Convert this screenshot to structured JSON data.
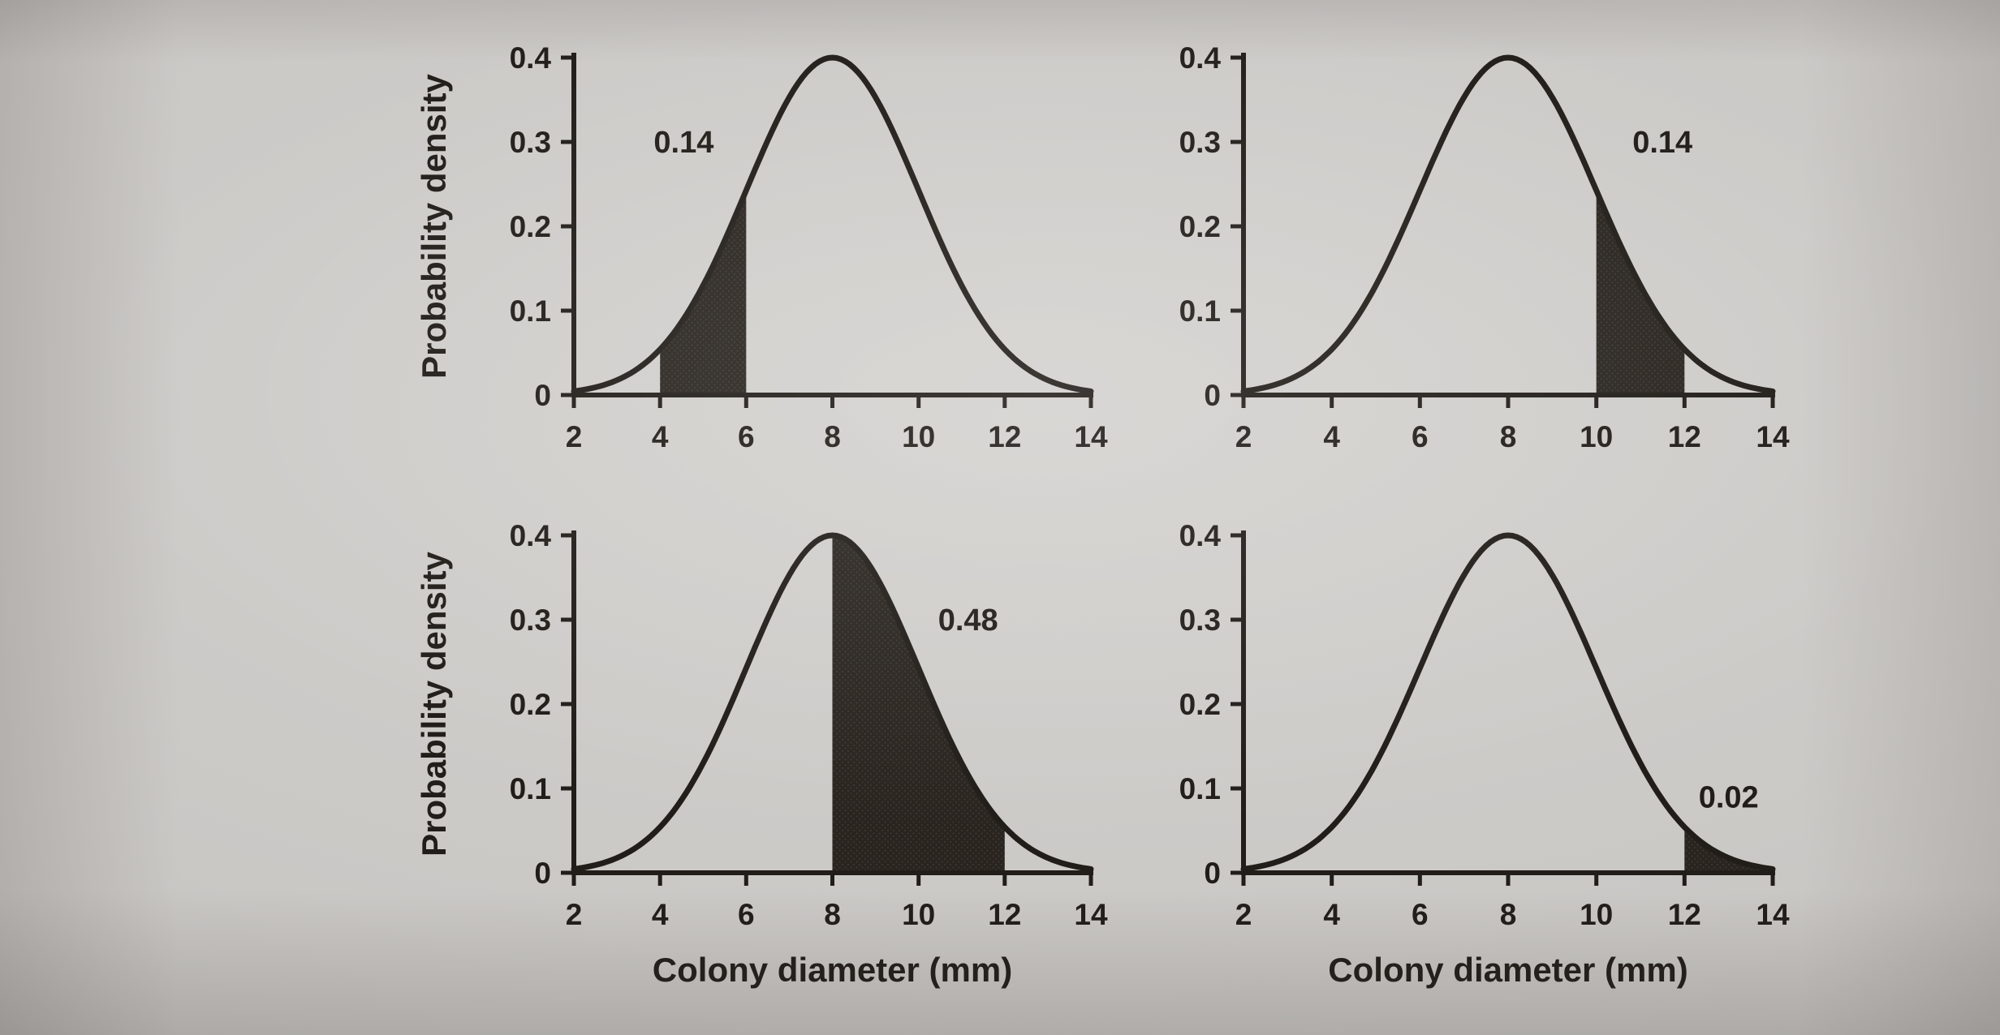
{
  "figure": {
    "x_ticks": [
      2,
      4,
      6,
      8,
      10,
      12,
      14
    ],
    "x_tick_labels": [
      "2",
      "4",
      "6",
      "8",
      "10",
      "12",
      "14"
    ],
    "y_ticks": [
      0,
      0.1,
      0.2,
      0.3,
      0.4
    ],
    "y_tick_labels": [
      "0",
      "0.1",
      "0.2",
      "0.3",
      "0.4"
    ],
    "xlabel": "Colony diameter (mm)",
    "ylabel": "Probability density"
  },
  "colors": {
    "ink": "#211d19",
    "shade_base": "#29241f",
    "shade_dot": "#3a342d",
    "paper": "#c9c7c4"
  },
  "chart_data": [
    {
      "type": "area",
      "position": "top-left",
      "curve": "normal-pdf",
      "mean": 8,
      "sd": 2,
      "peak": 0.4,
      "xlim": [
        2,
        14
      ],
      "ylim": [
        0,
        0.4
      ],
      "x_ticks": [
        2,
        4,
        6,
        8,
        10,
        12,
        14
      ],
      "y_ticks": [
        0,
        0.1,
        0.2,
        0.3,
        0.4
      ],
      "shaded_interval": [
        4,
        6
      ],
      "shaded_probability_label": "0.14",
      "label_pos": {
        "x": 4.55,
        "y": 0.3
      },
      "xlabel": "",
      "ylabel": "Probability density"
    },
    {
      "type": "area",
      "position": "top-right",
      "curve": "normal-pdf",
      "mean": 8,
      "sd": 2,
      "peak": 0.4,
      "xlim": [
        2,
        14
      ],
      "ylim": [
        0,
        0.4
      ],
      "x_ticks": [
        2,
        4,
        6,
        8,
        10,
        12,
        14
      ],
      "y_ticks": [
        0,
        0.1,
        0.2,
        0.3,
        0.4
      ],
      "shaded_interval": [
        10,
        12
      ],
      "shaded_probability_label": "0.14",
      "label_pos": {
        "x": 11.5,
        "y": 0.3
      },
      "xlabel": "",
      "ylabel": ""
    },
    {
      "type": "area",
      "position": "bottom-left",
      "curve": "normal-pdf",
      "mean": 8,
      "sd": 2,
      "peak": 0.4,
      "xlim": [
        2,
        14
      ],
      "ylim": [
        0,
        0.4
      ],
      "x_ticks": [
        2,
        4,
        6,
        8,
        10,
        12,
        14
      ],
      "y_ticks": [
        0,
        0.1,
        0.2,
        0.3,
        0.4
      ],
      "shaded_interval": [
        8,
        12
      ],
      "shaded_probability_label": "0.48",
      "label_pos": {
        "x": 11.15,
        "y": 0.3
      },
      "xlabel": "Colony diameter (mm)",
      "ylabel": "Probability density"
    },
    {
      "type": "area",
      "position": "bottom-right",
      "curve": "normal-pdf",
      "mean": 8,
      "sd": 2,
      "peak": 0.4,
      "xlim": [
        2,
        14
      ],
      "ylim": [
        0,
        0.4
      ],
      "x_ticks": [
        2,
        4,
        6,
        8,
        10,
        12,
        14
      ],
      "y_ticks": [
        0,
        0.1,
        0.2,
        0.3,
        0.4
      ],
      "shaded_interval": [
        12,
        14
      ],
      "shaded_probability_label": "0.02",
      "label_pos": {
        "x": 13.0,
        "y": 0.09
      },
      "xlabel": "Colony diameter (mm)",
      "ylabel": ""
    }
  ]
}
